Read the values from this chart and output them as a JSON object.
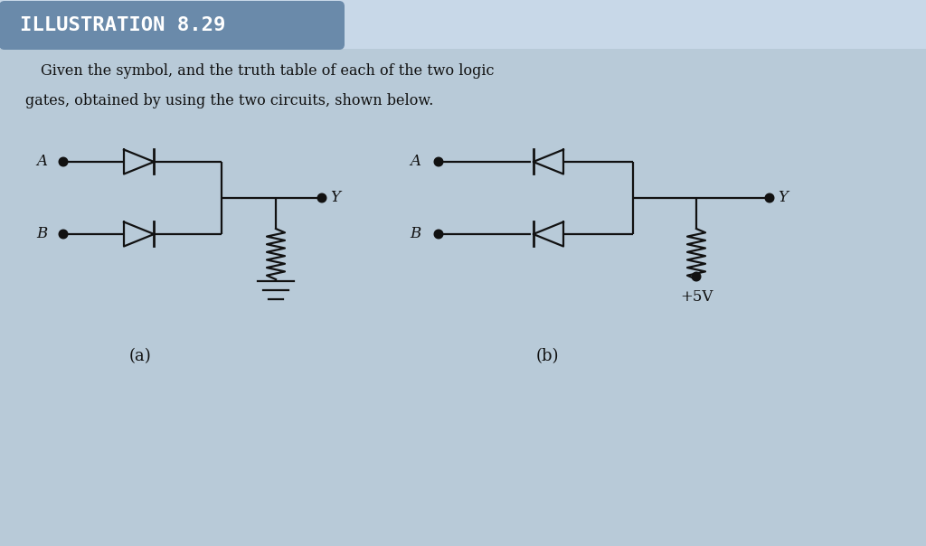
{
  "title": "ILLUSTRATION 8.29",
  "subtitle_line1": "Given the symbol, and the truth table of each of the two logic",
  "subtitle_line2": "gates, obtained by using the two circuits, shown below.",
  "bg_color_top": "#a8b8c8",
  "bg_color_main": "#b8cad8",
  "title_bg_color": "#6a8aaa",
  "text_color": "#111111",
  "label_a": "A",
  "label_b": "B",
  "label_y": "Y",
  "label_plus5v": "+5V",
  "label_a_circuit": "(a)",
  "label_b_circuit": "(b)",
  "lw": 1.6,
  "diode_size": 0.18
}
